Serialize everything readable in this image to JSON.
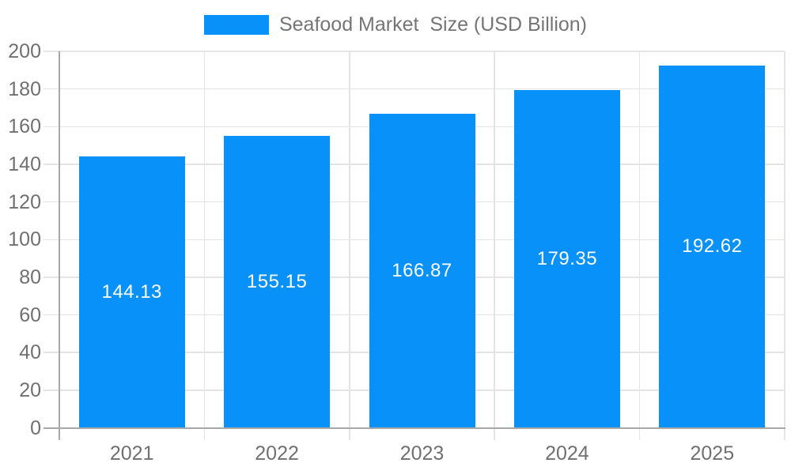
{
  "legend": {
    "label": "Seafood Market  Size (USD Billion)"
  },
  "chart_data": {
    "type": "bar",
    "title": "Seafood Market  Size (USD Billion)",
    "categories": [
      "2021",
      "2022",
      "2023",
      "2024",
      "2025"
    ],
    "values": [
      144.13,
      155.15,
      166.87,
      179.35,
      192.62
    ],
    "value_labels": [
      "144.13",
      "155.15",
      "166.87",
      "179.35",
      "192.62"
    ],
    "xlabel": "",
    "ylabel": "",
    "ylim": [
      0,
      200
    ],
    "yticks": [
      0,
      20,
      40,
      60,
      80,
      100,
      120,
      140,
      160,
      180,
      200
    ],
    "grid": true,
    "legend_position": "top-center",
    "colors": {
      "bar": "#0991fa",
      "bar_label_text": "#ffffff",
      "axis_text": "#707070",
      "legend_text": "#757575",
      "axis_line": "#a8a8a8",
      "grid_line": "#e4e4e4",
      "background": "#ffffff"
    }
  }
}
